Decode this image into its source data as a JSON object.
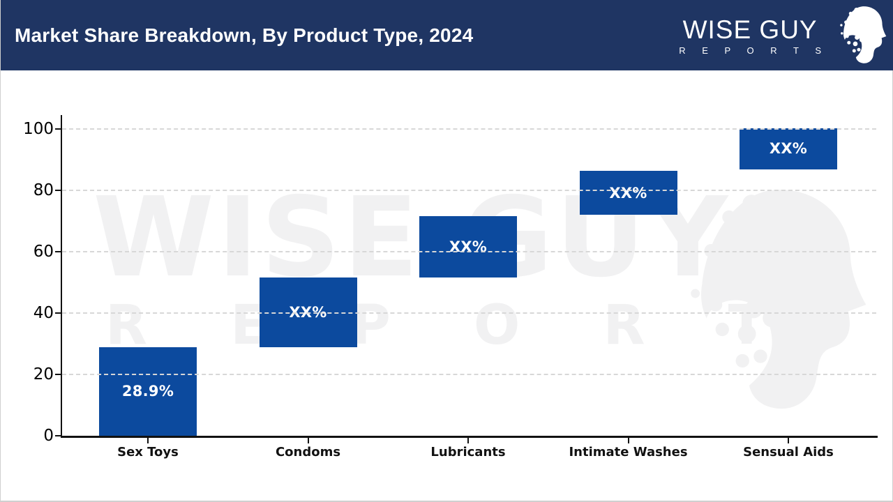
{
  "header": {
    "title": "Market Share Breakdown, By Product Type, 2024",
    "bg_color": "#1f3563",
    "logo": {
      "line1": "WISE GUY",
      "line2": "R E P O R T S"
    }
  },
  "watermark": {
    "line1": "WISE GUY",
    "line2": "R E P O R T S",
    "color": "#f1f1f2"
  },
  "chart_data": {
    "type": "bar",
    "subtype": "waterfall",
    "title": "Market Share Breakdown, By Product Type, 2024",
    "xlabel": "",
    "ylabel": "",
    "categories": [
      "Sex Toys",
      "Condoms",
      "Lubricants",
      "Intimate Washes",
      "Sensual Aids"
    ],
    "bars": [
      {
        "category": "Sex Toys",
        "start": 0,
        "end": 28.9,
        "label": "28.9%"
      },
      {
        "category": "Condoms",
        "start": 28.9,
        "end": 51.6,
        "label": "XX%"
      },
      {
        "category": "Lubricants",
        "start": 51.6,
        "end": 71.7,
        "label": "XX%"
      },
      {
        "category": "Intimate Washes",
        "start": 72.0,
        "end": 86.4,
        "label": "XX%"
      },
      {
        "category": "Sensual Aids",
        "start": 86.9,
        "end": 100.2,
        "label": "XX%"
      }
    ],
    "yticks": [
      0,
      20,
      40,
      60,
      80,
      100
    ],
    "yticklabels": [
      "0",
      "20",
      "40",
      "60",
      "80",
      "100"
    ],
    "ylim": [
      0,
      105
    ],
    "bar_color": "#0c4a9e",
    "grid": "horizontal-dashed",
    "legend": "none"
  }
}
